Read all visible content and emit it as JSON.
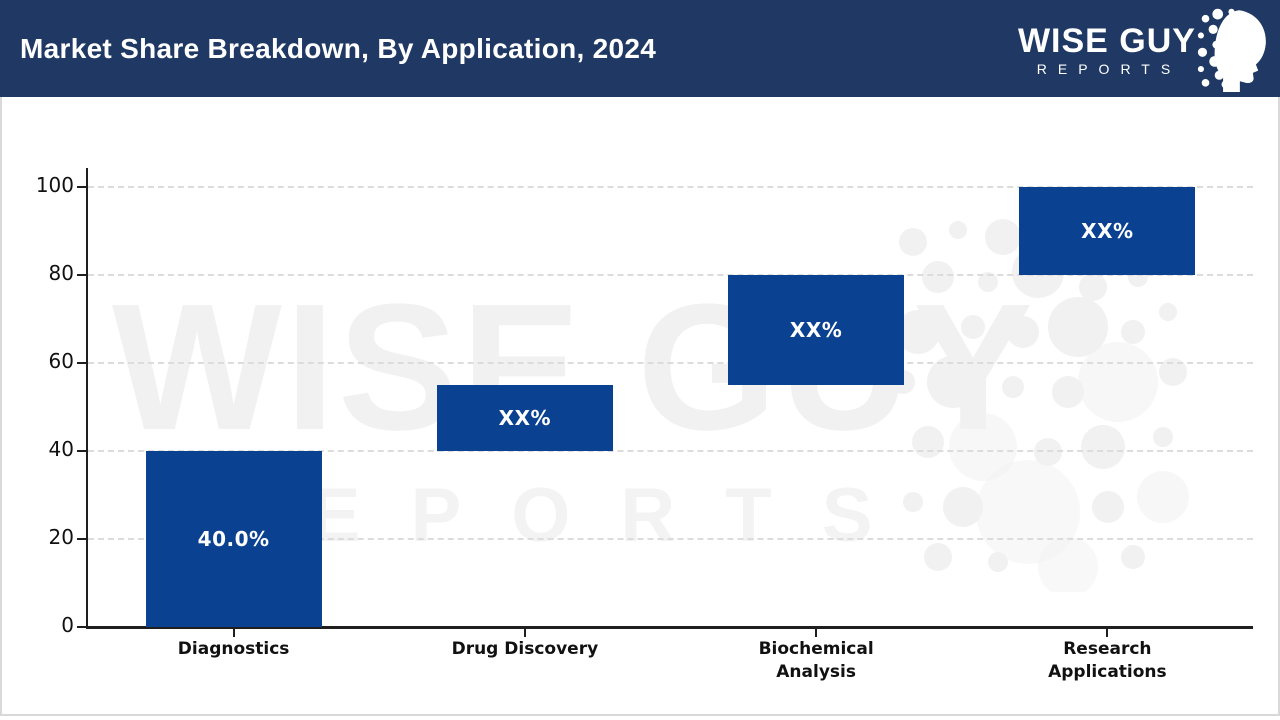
{
  "header": {
    "title": "Market Share Breakdown, By Application, 2024",
    "logo": {
      "name": "WISE GUY",
      "sub": "REPORTS"
    }
  },
  "watermark": {
    "line1": "WISE GUY",
    "line2": "REPORTS"
  },
  "colors": {
    "header_bg": "#1f3864",
    "bar": "#0b4191",
    "grid": "#dcdcdc",
    "axis": "#1f1f1f",
    "bar_label": "#ffffff",
    "watermark": "#f1f1f2"
  },
  "chart_data": {
    "type": "bar",
    "subtype": "waterfall",
    "title": "Market Share Breakdown, By Application, 2024",
    "xlabel": "",
    "ylabel": "",
    "ylim": [
      0,
      100
    ],
    "yticks": [
      0,
      20,
      40,
      60,
      80,
      100
    ],
    "grid": "horizontal-dashed",
    "legend": "none",
    "categories": [
      [
        "Diagnostics"
      ],
      [
        "Drug Discovery"
      ],
      [
        "Biochemical",
        "Analysis"
      ],
      [
        "Research",
        "Applications"
      ]
    ],
    "segments": [
      {
        "category": "Diagnostics",
        "start": 0,
        "end": 40,
        "value": 40,
        "label": "40.0%"
      },
      {
        "category": "Drug Discovery",
        "start": 40,
        "end": 55,
        "value": 15,
        "label": "XX%"
      },
      {
        "category": "Biochemical Analysis",
        "start": 55,
        "end": 80,
        "value": 25,
        "label": "XX%"
      },
      {
        "category": "Research Applications",
        "start": 80,
        "end": 100,
        "value": 20,
        "label": "XX%"
      }
    ]
  }
}
